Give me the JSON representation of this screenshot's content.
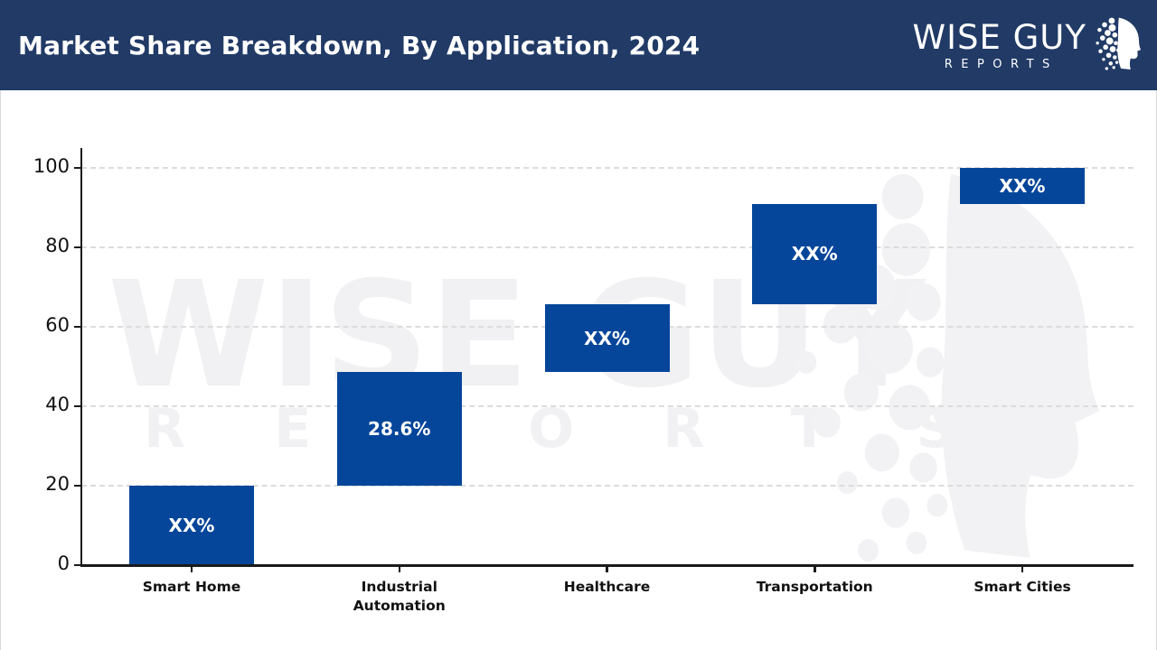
{
  "header": {
    "title": "Market Share Breakdown, By Application, 2024",
    "bg_color": "#213a66",
    "logo": {
      "line1": "WISE GUY",
      "line2": "REPORTS"
    }
  },
  "watermark": {
    "line1": "WISE GUY",
    "line2": "REPORTS"
  },
  "chart_data": {
    "type": "bar",
    "subtype": "waterfall",
    "title": "Market Share Breakdown, By Application, 2024",
    "categories": [
      "Smart Home",
      "Industrial Automation",
      "Healthcare",
      "Transportation",
      "Smart Cities"
    ],
    "series": [
      {
        "name": "Market Share",
        "segments": [
          {
            "category": "Smart Home",
            "start": 0,
            "end": 20,
            "value": 20,
            "label": "XX%"
          },
          {
            "category": "Industrial Automation",
            "start": 20,
            "end": 48.6,
            "value": 28.6,
            "label": "28.6%"
          },
          {
            "category": "Healthcare",
            "start": 48.6,
            "end": 65.7,
            "value": 17.1,
            "label": "XX%"
          },
          {
            "category": "Transportation",
            "start": 65.7,
            "end": 91,
            "value": 25.3,
            "label": "XX%"
          },
          {
            "category": "Smart Cities",
            "start": 91,
            "end": 100,
            "value": 9,
            "label": "XX%"
          }
        ]
      }
    ],
    "xlabel": "",
    "ylabel": "",
    "ylim": [
      0,
      100
    ],
    "yticks": [
      0,
      20,
      40,
      60,
      80,
      100
    ],
    "grid": "horizontal-dashed",
    "legend": "none",
    "bar_color": "#05469a",
    "bar_label_color": "#ffffff",
    "axis_color": "#1a1a1a",
    "grid_color": "#dcdcdc"
  }
}
